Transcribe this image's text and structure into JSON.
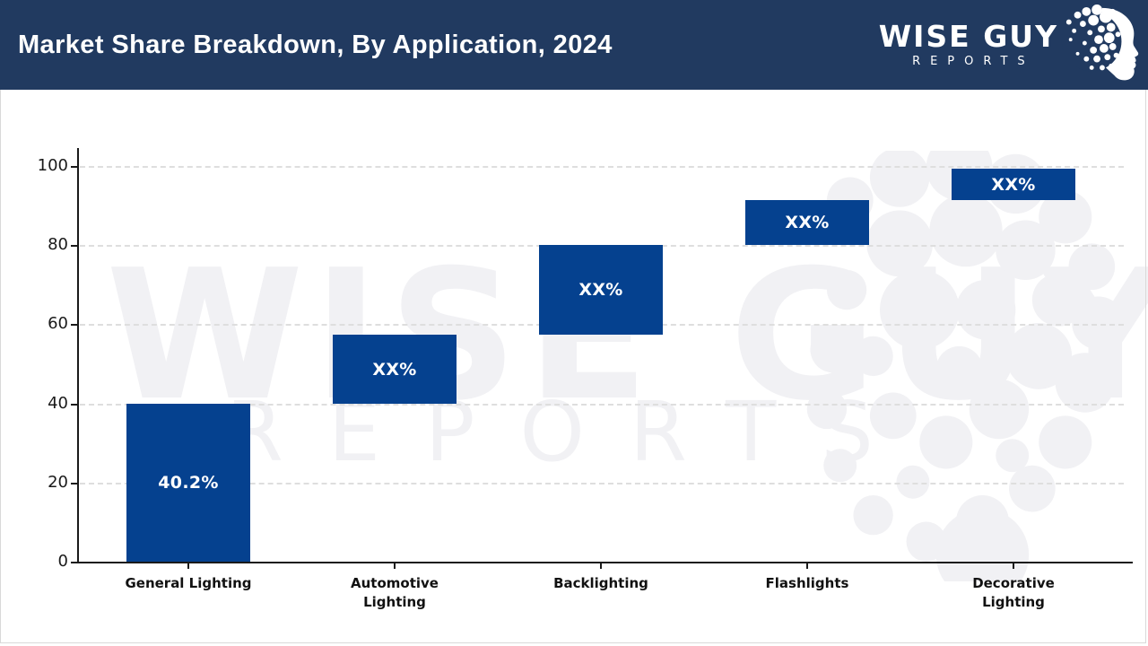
{
  "header": {
    "title": "Market Share Breakdown, By Application, 2024",
    "logo": {
      "line1": "WISE GUY",
      "line2": "REPORTS"
    }
  },
  "watermark": {
    "line1": "WISE GUY",
    "line2": "REPORTS"
  },
  "colors": {
    "header_bg": "#213A60",
    "bar": "#05418F",
    "bar_label": "#FFFFFF",
    "watermark": "#F1F1F4",
    "grid": "#DEDEDE",
    "axis": "#1A1A1A"
  },
  "chart_data": {
    "type": "bar",
    "subtype": "waterfall",
    "title": "Market Share Breakdown, By Application, 2024",
    "categories": [
      "General Lighting",
      "Automotive\nLighting",
      "Backlighting",
      "Flashlights",
      "Decorative\nLighting"
    ],
    "bars": [
      {
        "category": "General Lighting",
        "start": 0,
        "end": 40.2,
        "label": "40.2%"
      },
      {
        "category": "Automotive Lighting",
        "start": 40.2,
        "end": 57.5,
        "label": "XX%"
      },
      {
        "category": "Backlighting",
        "start": 57.5,
        "end": 80.2,
        "label": "XX%"
      },
      {
        "category": "Flashlights",
        "start": 80.2,
        "end": 91.5,
        "label": "XX%"
      },
      {
        "category": "Decorative Lighting",
        "start": 91.5,
        "end": 99.6,
        "label": "XX%"
      }
    ],
    "xlabel": "",
    "ylabel": "",
    "ylim": [
      0,
      100
    ],
    "yticks": [
      0,
      20,
      40,
      60,
      80,
      100
    ],
    "grid": "horizontal-dashed",
    "legend": "none"
  }
}
